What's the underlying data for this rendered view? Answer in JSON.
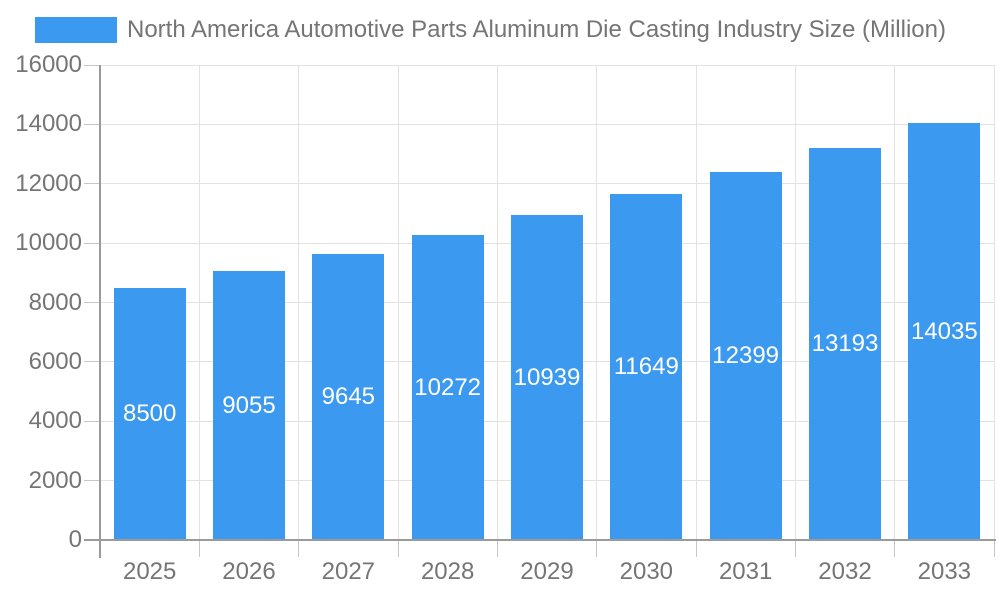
{
  "chart_data": {
    "type": "bar",
    "title": "North America Automotive Parts Aluminum Die Casting Industry Size (Million)",
    "categories": [
      "2025",
      "2026",
      "2027",
      "2028",
      "2029",
      "2030",
      "2031",
      "2032",
      "2033"
    ],
    "values": [
      8500,
      9055,
      9645,
      10272,
      10939,
      11649,
      12399,
      13193,
      14035
    ],
    "xlabel": "",
    "ylabel": "",
    "ylim": [
      0,
      16000
    ],
    "ytick_step": 2000,
    "grid": true,
    "legend_position": "top-left",
    "bar_value_labels": "inside, vertically centered, white",
    "colors": {
      "bar": "#3B99EF",
      "bar_label_text": "#FFFFFF",
      "axis_text": "#757575",
      "gridline": "#E2E2E2",
      "axis_line": "#9A9A9A",
      "tick": "#C6C6C6",
      "background": "#FFFFFF"
    }
  }
}
